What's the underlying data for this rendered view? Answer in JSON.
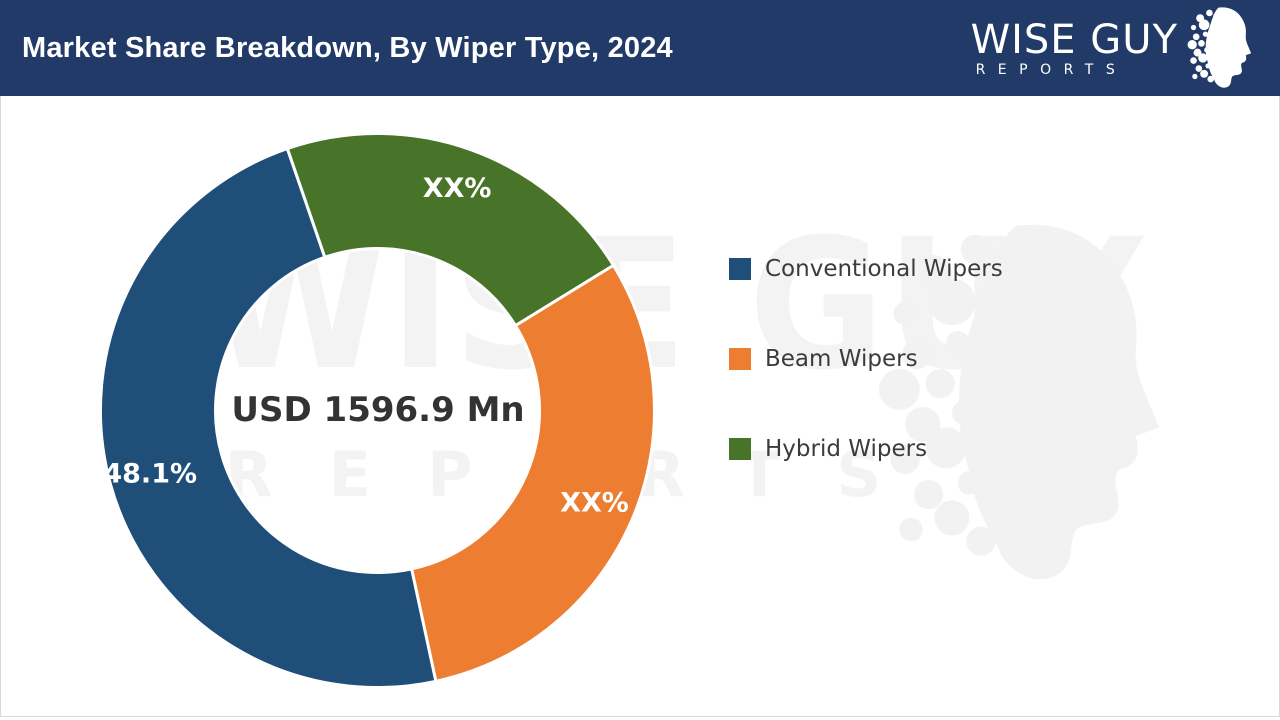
{
  "header": {
    "title": "Market Share Breakdown, By Wiper Type, 2024",
    "logo": {
      "line1": "WISE GUY",
      "line2": "REPORTS"
    }
  },
  "watermark": {
    "line1": "WISE GUY",
    "line2": "REPORTS"
  },
  "chart_data": {
    "type": "pie",
    "donut": true,
    "title": "Market Share Breakdown, By Wiper Type, 2024",
    "center_label": "USD 1596.9 Mn",
    "start_angle_deg": -19,
    "outer_radius_px": 277,
    "inner_radius_px": 162,
    "label_radius_px": 236,
    "segments": [
      {
        "name": "Hybrid Wipers",
        "display_label": "XX%",
        "fraction": 0.215,
        "color": "#477428"
      },
      {
        "name": "Beam Wipers",
        "display_label": "XX%",
        "fraction": 0.304,
        "color": "#ED7D31"
      },
      {
        "name": "Conventional Wipers",
        "display_label": "48.1%",
        "fraction": 0.481,
        "color": "#1F4E79"
      }
    ],
    "legend": [
      {
        "label": "Conventional Wipers",
        "color": "#1F4E79"
      },
      {
        "label": "Beam Wipers",
        "color": "#ED7D31"
      },
      {
        "label": "Hybrid Wipers",
        "color": "#477428"
      }
    ],
    "legend_position": "right"
  },
  "colors": {
    "header_bg": "#213A68",
    "title_text": "#FFFFFF",
    "center_text": "#333333",
    "legend_text": "#3B3B3B",
    "segment_label_text": "#FFFFFF",
    "watermark": "#F3F3F3",
    "frame_border": "#D9D9D9"
  }
}
